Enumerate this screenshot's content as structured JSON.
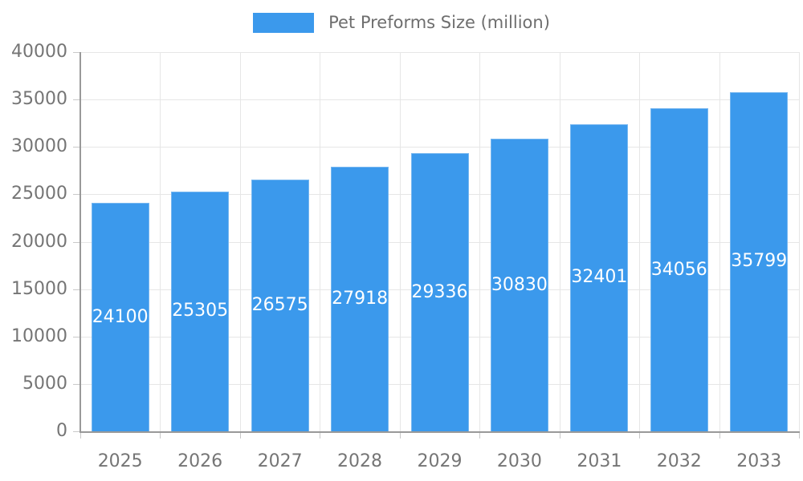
{
  "legend": {
    "label": "Pet Preforms Size (million)"
  },
  "colors": {
    "bar": "#3B99EC",
    "bar_border": "#77B7F0",
    "axis_line": "#999999",
    "grid_line": "#E6E6E6",
    "tick": "#C8C8C8",
    "tick_label": "#757575",
    "legend_text": "#6E6E6E",
    "bar_label": "#FFFFFF",
    "background": "#FFFFFF"
  },
  "chart_data": {
    "type": "bar",
    "title": "Pet Preforms Size (million)",
    "series_name": "Pet Preforms Size (million)",
    "categories": [
      "2025",
      "2026",
      "2027",
      "2028",
      "2029",
      "2030",
      "2031",
      "2032",
      "2033"
    ],
    "values": [
      24100,
      25305,
      26575,
      27918,
      29336,
      30830,
      32401,
      34056,
      35799
    ],
    "bar_value_labels": [
      "24100",
      "25305",
      "26575",
      "27918",
      "29336",
      "30830",
      "32401",
      "34056",
      "35799"
    ],
    "xlabel": "",
    "ylabel": "",
    "ylim": [
      0,
      40000
    ],
    "y_ticks": [
      0,
      5000,
      10000,
      15000,
      20000,
      25000,
      30000,
      35000,
      40000
    ],
    "grid": true,
    "legend_position": "top",
    "value_labels": "inside-center-white"
  }
}
